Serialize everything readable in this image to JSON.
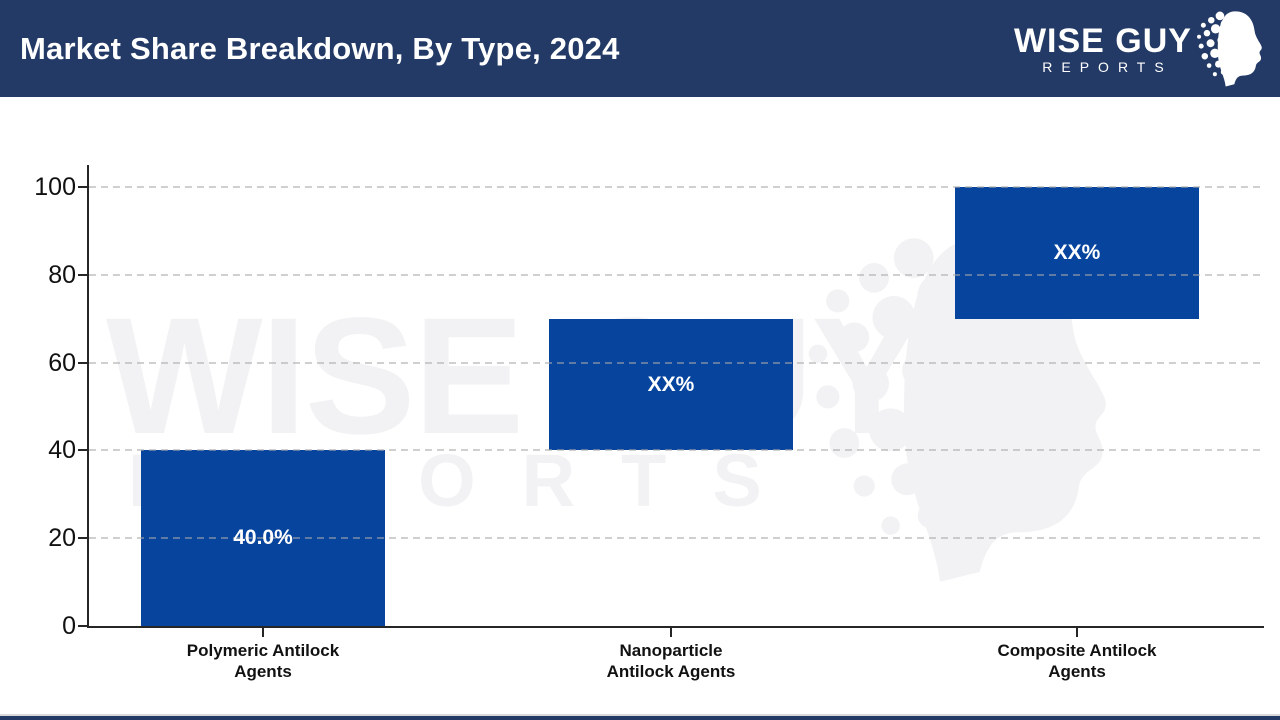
{
  "header": {
    "title": "Market Share Breakdown, By Type, 2024",
    "logo": {
      "line1": "WISE GUY",
      "line2": "REPORTS"
    }
  },
  "watermark": {
    "line1": "WISE GUY",
    "line2": "REPORTS"
  },
  "colors": {
    "header_bg": "#233a66",
    "bar": "#07449e",
    "bar_label": "#ffffff",
    "watermark": "#f2f2f4",
    "axis": "#262626",
    "gridline": "#c8c8c8"
  },
  "chart_data": {
    "type": "bar",
    "subtype": "floating-waterfall",
    "title": "Market Share Breakdown, By Type, 2024",
    "categories": [
      "Polymeric Antilock\nAgents",
      "Nanoparticle\nAntilock Agents",
      "Composite Antilock\nAgents"
    ],
    "series": [
      {
        "name": "Market Share",
        "segments": [
          {
            "category": "Polymeric Antilock Agents",
            "start": 0,
            "end": 40,
            "label": "40.0%"
          },
          {
            "category": "Nanoparticle Antilock Agents",
            "start": 40,
            "end": 70,
            "label": "XX%"
          },
          {
            "category": "Composite Antilock Agents",
            "start": 70,
            "end": 100,
            "label": "XX%"
          }
        ]
      }
    ],
    "ylim": [
      0,
      100
    ],
    "yticks": [
      0,
      20,
      40,
      60,
      80,
      100
    ],
    "xlabel": "",
    "ylabel": "",
    "grid": "horizontal-dashed",
    "legend": "none",
    "bar_color": "#07449e",
    "bar_label_color": "#ffffff"
  }
}
